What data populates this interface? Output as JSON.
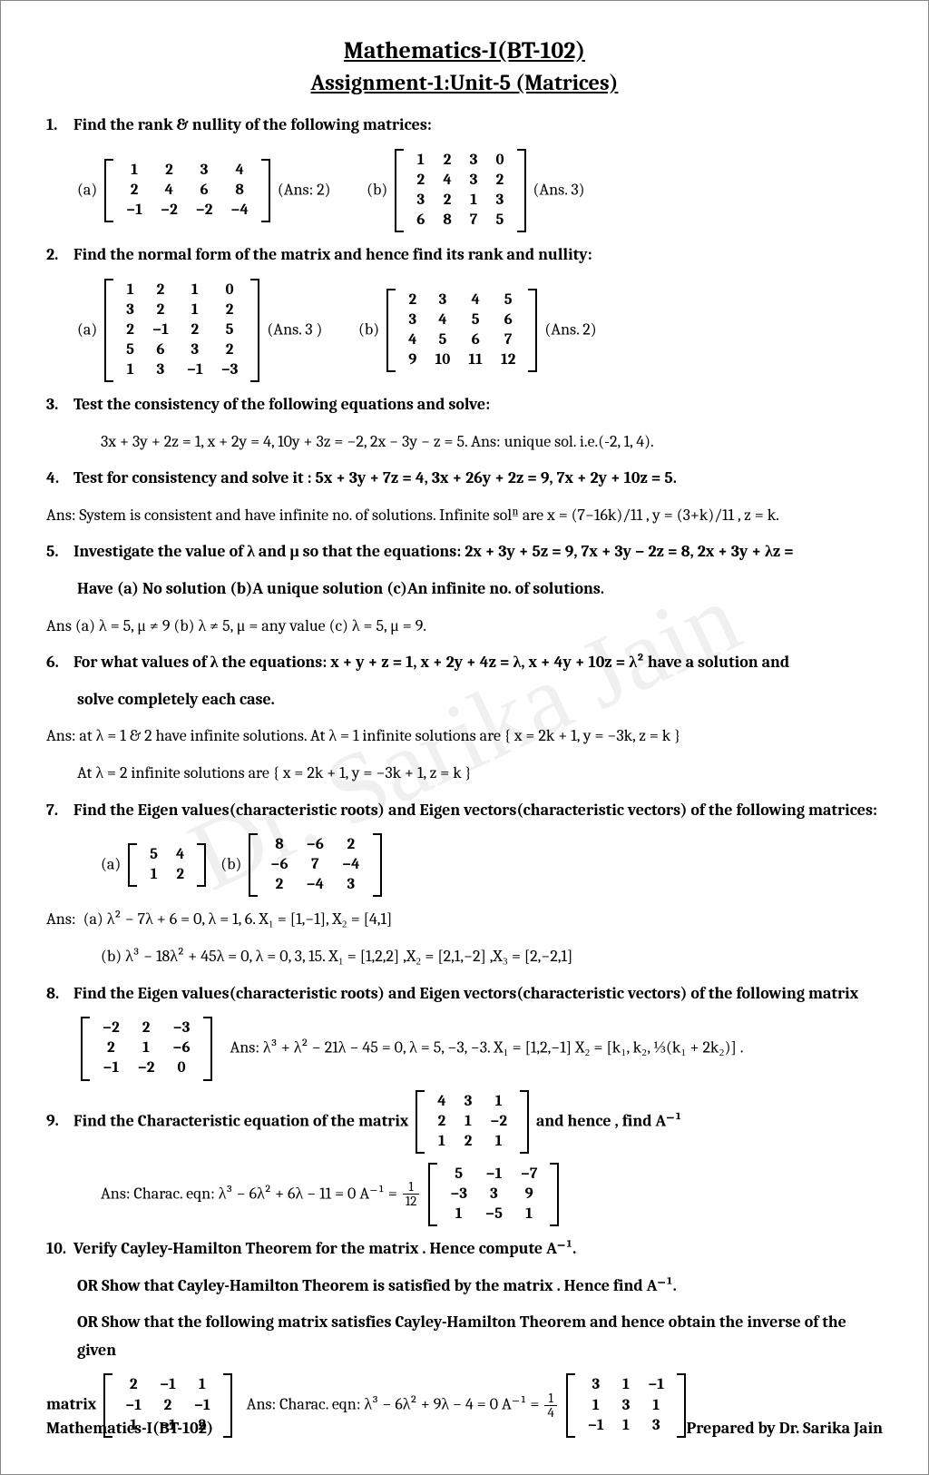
{
  "title": "Mathematics-I(BT-102)",
  "subtitle": "Assignment-1:Unit-5 (Matrices)",
  "q1": {
    "text": "Find the rank & nullity of the following matrices:",
    "a_ans": "(Ans: 2)",
    "b_ans": "(Ans. 3)",
    "mA": [
      [
        "1",
        "2",
        "3",
        "4"
      ],
      [
        "2",
        "4",
        "6",
        "8"
      ],
      [
        "−1",
        "−2",
        "−2",
        "−4"
      ]
    ],
    "mB": [
      [
        "1",
        "2",
        "3",
        "0"
      ],
      [
        "2",
        "4",
        "3",
        "2"
      ],
      [
        "3",
        "2",
        "1",
        "3"
      ],
      [
        "6",
        "8",
        "7",
        "5"
      ]
    ]
  },
  "q2": {
    "text": "Find the normal form of the matrix and hence find its rank and nullity:",
    "a_ans": "(Ans. 3 )",
    "b_ans": "(Ans. 2)",
    "mA": [
      [
        "1",
        "2",
        "1",
        "0"
      ],
      [
        "3",
        "2",
        "1",
        "2"
      ],
      [
        "2",
        "−1",
        "2",
        "5"
      ],
      [
        "5",
        "6",
        "3",
        "2"
      ],
      [
        "1",
        "3",
        "−1",
        "−3"
      ]
    ],
    "mB": [
      [
        "2",
        "3",
        "4",
        "5"
      ],
      [
        "3",
        "4",
        "5",
        "6"
      ],
      [
        "4",
        "5",
        "6",
        "7"
      ],
      [
        "9",
        "10",
        "11",
        "12"
      ]
    ]
  },
  "q3": {
    "text": "Test the consistency of the following equations and solve:",
    "eq": "3x + 3y + 2z = 1,   x + 2y = 4,   10y + 3z = −2,   2x − 3y − z = 5.   Ans: unique sol. i.e.(-2, 1, 4)."
  },
  "q4": {
    "text": "Test for consistency and solve it :   5x + 3y + 7z = 4,      3x + 26y + 2z = 9,     7x + 2y + 10z = 5.",
    "ans": "Ans: System is consistent and have infinite no. of solutions. Infinite solⁿ are  x = (7−16k)/11 , y = (3+k)/11 , z = k."
  },
  "q5": {
    "text": "Investigate the value of λ and μ so that the equations: 2x + 3y + 5z = 9,  7x + 3y − 2z = 8,  2x + 3y + λz =",
    "text2": "Have  (a) No solution   (b)A unique solution   (c)An infinite no. of solutions.",
    "ans": "Ans (a)  λ = 5, μ ≠ 9   (b) λ ≠ 5, μ = any value  (c) λ = 5, μ = 9."
  },
  "q6": {
    "text": "For what values of λ  the equations: x + y + z = 1,   x + 2y + 4z = λ,   x + 4y + 10z = λ²   have a solution and",
    "text2": "solve completely each case.",
    "ans1": "Ans: at λ = 1 & 2 have infinite solutions. At λ = 1 infinite solutions are {   x = 2k + 1, y = −3k, z = k }",
    "ans2": "At λ = 2 infinite solutions are {    x = 2k + 1, y = −3k + 1, z = k }"
  },
  "q7": {
    "text": "Find the Eigen values(characteristic roots) and Eigen vectors(characteristic vectors) of the following matrices:",
    "mA": [
      [
        "5",
        "4"
      ],
      [
        "1",
        "2"
      ]
    ],
    "mB": [
      [
        "8",
        "−6",
        "2"
      ],
      [
        "−6",
        "7",
        "−4"
      ],
      [
        "2",
        "−4",
        "3"
      ]
    ],
    "ansA": "(a)  λ² − 7λ + 6 = 0,  λ = 1, 6.  X₁ = [1,−1], X₂ = [4,1]",
    "ansB": "(b)  λ³ − 18λ² + 45λ = 0,  λ = 0, 3, 15.   X₁ = [1,2,2]  ,X₂ = [2,1,−2]  ,X₃ = [2,−2,1]"
  },
  "q8": {
    "text": "Find the Eigen values(characteristic roots) and Eigen vectors(characteristic vectors) of the following matrix",
    "m": [
      [
        "−2",
        "2",
        "−3"
      ],
      [
        "2",
        "1",
        "−6"
      ],
      [
        "−1",
        "−2",
        "0"
      ]
    ],
    "ans": "Ans: λ³ + λ² − 21λ − 45 = 0,  λ = 5, −3, −3.   X₁ = [1,2,−1]   X₂ = [k₁, k₂, ⅓(k₁ + 2k₂)] ."
  },
  "q9": {
    "text": "Find the Characteristic equation of the matrix",
    "text2": "and hence , find A⁻¹",
    "m": [
      [
        "4",
        "3",
        "1"
      ],
      [
        "2",
        "1",
        "−2"
      ],
      [
        "1",
        "2",
        "1"
      ]
    ],
    "ans_pre": "Ans:   Charac. eqn: λ³ − 6λ² + 6λ − 11 = 0     A⁻¹ = ",
    "frac_n": "1",
    "frac_d": "12",
    "inv": [
      [
        "5",
        "−1",
        "−7"
      ],
      [
        "−3",
        "3",
        "9"
      ],
      [
        "1",
        "−5",
        "1"
      ]
    ]
  },
  "q10": {
    "l1": "Verify Cayley-Hamilton Theorem for the matrix . Hence compute A⁻¹.",
    "l2": "OR Show that Cayley-Hamilton Theorem  is satisfied by the matrix . Hence find A⁻¹.",
    "l3": "OR Show that the following matrix satisfies Cayley-Hamilton Theorem and hence obtain the inverse of the given",
    "mlabel": "matrix",
    "m": [
      [
        "2",
        "−1",
        "1"
      ],
      [
        "−1",
        "2",
        "−1"
      ],
      [
        "1",
        "−1",
        "2"
      ]
    ],
    "ans_pre": "Ans:   Charac. eqn: λ³ − 6λ² + 9λ − 4 = 0        A⁻¹ = ",
    "frac_n": "1",
    "frac_d": "4",
    "inv": [
      [
        "3",
        "1",
        "−1"
      ],
      [
        "1",
        "3",
        "1"
      ],
      [
        "−1",
        "1",
        "3"
      ]
    ]
  },
  "footer_left": "Mathematics-I(BT-102)",
  "footer_right": "Prepared by Dr. Sarika Jain",
  "watermark": "Dr. Sarika Jain"
}
